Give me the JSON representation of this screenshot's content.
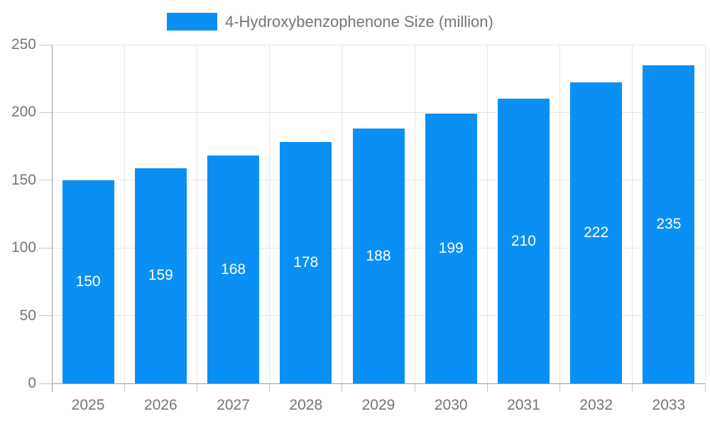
{
  "chart_data": {
    "type": "bar",
    "legend_label": "4-Hydroxybenzophenone Size (million)",
    "categories": [
      "2025",
      "2026",
      "2027",
      "2028",
      "2029",
      "2030",
      "2031",
      "2032",
      "2033"
    ],
    "values": [
      150,
      159,
      168,
      178,
      188,
      199,
      210,
      222,
      235
    ],
    "bar_value_labels": [
      "150",
      "159",
      "168",
      "178",
      "188",
      "199",
      "210",
      "222",
      "235"
    ],
    "ytick_labels": [
      "0",
      "50",
      "100",
      "150",
      "200",
      "250"
    ],
    "yticks": [
      0,
      50,
      100,
      150,
      200,
      250
    ],
    "ylim": [
      0,
      250
    ],
    "xlabel": "",
    "ylabel": "",
    "grid": true,
    "legend_position": "top",
    "colors": {
      "bar": "#0a90f4",
      "bar_label": "#ffffff",
      "axis_text": "#757575",
      "legend_text": "#757575",
      "gridline": "#e6e6e6",
      "axis_line": "#9e9e9e",
      "tick": "#c6c6c6",
      "background": "#ffffff"
    }
  }
}
